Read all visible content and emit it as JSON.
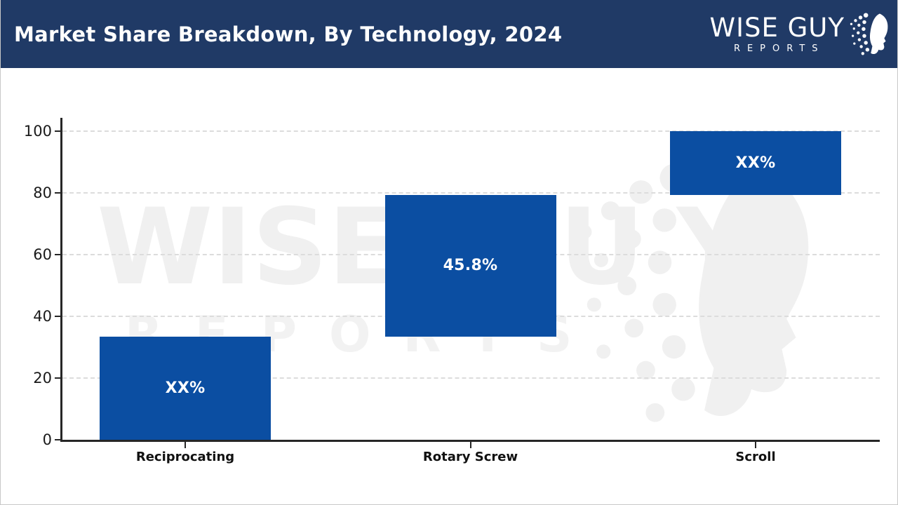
{
  "header": {
    "title": "Market Share Breakdown, By Technology, 2024",
    "bg_color": "#203a66",
    "logo": {
      "word1": "WISE",
      "word2": "GUY",
      "word3": "REPORTS"
    }
  },
  "watermark": {
    "word1": "WISE",
    "word2": "GUY",
    "word3": "REPORTS"
  },
  "chart_data": {
    "type": "bar",
    "variant": "waterfall",
    "title": "Market Share Breakdown, By Technology, 2024",
    "categories": [
      "Reciprocating",
      "Rotary Screw",
      "Scroll"
    ],
    "bars": [
      {
        "category": "Reciprocating",
        "start": 0,
        "end": 33.5,
        "label": "XX%"
      },
      {
        "category": "Rotary Screw",
        "start": 33.5,
        "end": 79.3,
        "label": "45.8%"
      },
      {
        "category": "Scroll",
        "start": 79.3,
        "end": 100,
        "label": "XX%"
      }
    ],
    "xlabel": "",
    "ylabel": "",
    "ylim": [
      0,
      100
    ],
    "yticks": [
      0,
      20,
      40,
      60,
      80,
      100
    ],
    "grid": "horizontal-dashed",
    "legend": "none",
    "bar_color": "#0b4ea2",
    "bar_label_color": "#ffffff",
    "axis_color": "#262626",
    "grid_color": "#dcdcdc"
  }
}
